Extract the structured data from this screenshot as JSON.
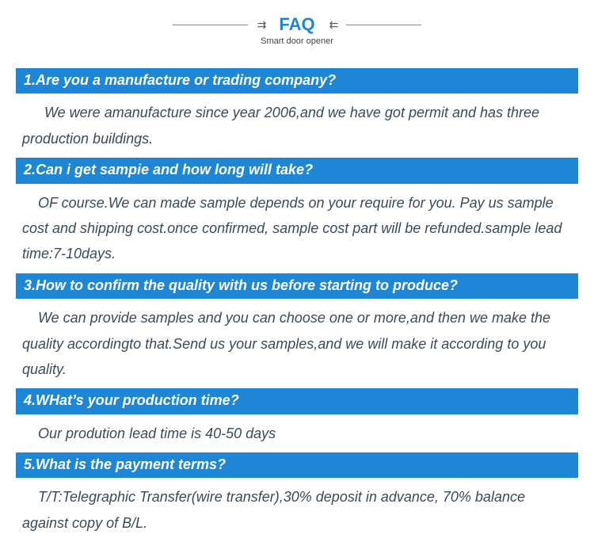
{
  "header": {
    "title": "FAQ",
    "subtitle": "Smart door opener",
    "title_color": "#1d86d6",
    "subtitle_color": "#444444"
  },
  "styles": {
    "q_bg": "#1d86d6",
    "q_fg": "#ffffff",
    "answer_color": "#3a4a5a",
    "page_bg": "#ffffff",
    "q_fontsize": 18,
    "a_fontsize": 18
  },
  "faqs": [
    {
      "q": "1.Are you a manufacture or trading company?",
      "a": "We were amanufacture since year 2006,and we have got permit and has three production buildings."
    },
    {
      "q": "2.Can i get sampie and how long will take?",
      "a": "OF course.We can made sample depends on your require for you. Pay us sample cost and shipping cost.once confirmed, sample cost part will be refunded.sample lead time:7-10days."
    },
    {
      "q": "3.How to confirm the quality with us before starting to produce?",
      "a": "We can provide samples and you can choose one  or more,and then we make the quality accordingto that.Send us your samples,and we will make it according to you quality."
    },
    {
      "q": "4.WHat’s your production time?",
      "a": "Our prodution lead time is 40-50 days"
    },
    {
      "q": "5.What is the payment terms?",
      "a": "T/T:Telegraphic Transfer(wire transfer),30% deposit in advance, 70% balance against copy of B/L."
    }
  ]
}
